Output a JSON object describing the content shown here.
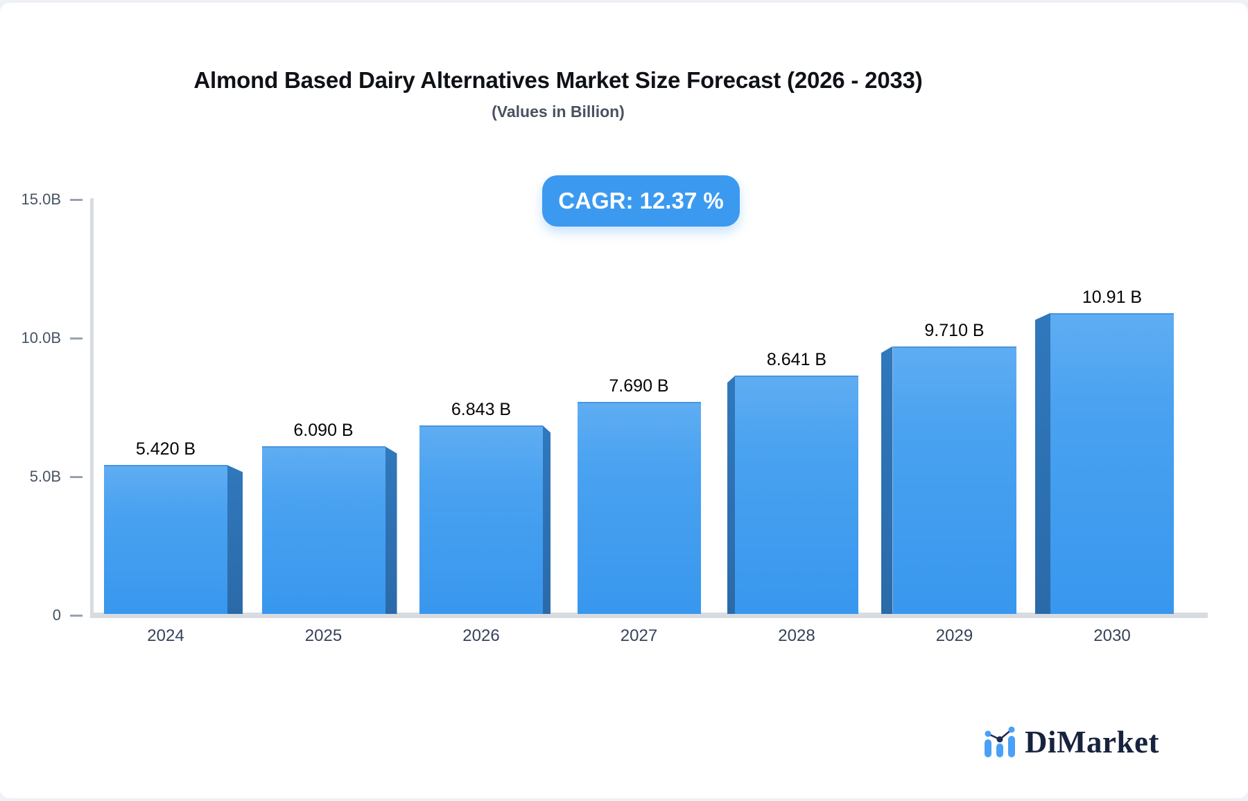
{
  "page": {
    "background": "#eef1f5",
    "card_background": "#ffffff"
  },
  "header": {
    "title": "Almond Based Dairy Alternatives Market Size Forecast (2026 - 2033)",
    "subtitle": "(Values in Billion)"
  },
  "badge": {
    "label": "CAGR: 12.37 %",
    "color": "#3b9af0",
    "text_color": "#ffffff"
  },
  "chart_data": {
    "type": "bar",
    "categories": [
      "2024",
      "2025",
      "2026",
      "2027",
      "2028",
      "2029",
      "2030"
    ],
    "values": [
      5.42,
      6.09,
      6.843,
      7.69,
      8.641,
      9.71,
      10.91
    ],
    "value_labels": [
      "5.420 B",
      "6.090 B",
      "6.843 B",
      "7.690 B",
      "8.641 B",
      "9.710 B",
      "10.91 B"
    ],
    "title": "Almond Based Dairy Alternatives Market Size Forecast (2026 - 2033)",
    "subtitle": "(Values in Billion)",
    "xlabel": "",
    "ylabel": "",
    "ylim": [
      0,
      15
    ],
    "yticks": [
      {
        "value": 0,
        "label": "0"
      },
      {
        "value": 5,
        "label": "5.0B"
      },
      {
        "value": 10,
        "label": "10.0B"
      },
      {
        "value": 15,
        "label": "15.0B"
      }
    ],
    "grid": false,
    "legend": "none",
    "bar_style": "3d-extruded",
    "bar_color_top": "#5fadf2",
    "bar_color_bottom": "#3897ee",
    "bar_side_color": "#2e72b4",
    "axis_color": "#d8dce1",
    "tick_color": "#98a2ae"
  },
  "logo": {
    "text": "DiMarket",
    "icon": "bar-chart-with-trend-dots",
    "icon_color": "#4aa0f6",
    "accent_color": "#1f2d50"
  }
}
